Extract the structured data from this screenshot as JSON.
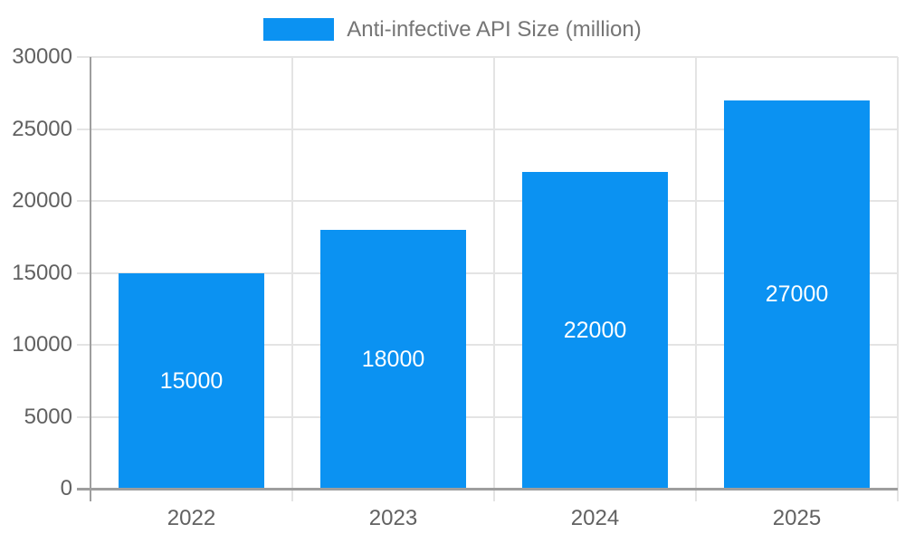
{
  "chart_data": {
    "type": "bar",
    "title": "",
    "legend": {
      "position": "top",
      "label": "Anti-infective API Size (million)"
    },
    "categories": [
      "2022",
      "2023",
      "2024",
      "2025"
    ],
    "series": [
      {
        "name": "Anti-infective API Size (million)",
        "values": [
          15000,
          18000,
          22000,
          27000
        ],
        "color": "#0b92f2"
      }
    ],
    "data_labels": [
      "15000",
      "18000",
      "22000",
      "27000"
    ],
    "xlabel": "",
    "ylabel": "",
    "ylim": [
      0,
      30000
    ],
    "yticks": {
      "values": [
        0,
        5000,
        10000,
        15000,
        20000,
        25000,
        30000
      ],
      "labels": [
        "0",
        "5000",
        "10000",
        "15000",
        "20000",
        "25000",
        "30000"
      ]
    },
    "grid": true,
    "colors": {
      "bar": "#0b92f2",
      "gridline": "#e4e4e4",
      "axis_line": "#9e9e9e",
      "tick_label": "#616161",
      "legend_text": "#757575",
      "data_label": "#ffffff",
      "background": "#ffffff"
    }
  }
}
